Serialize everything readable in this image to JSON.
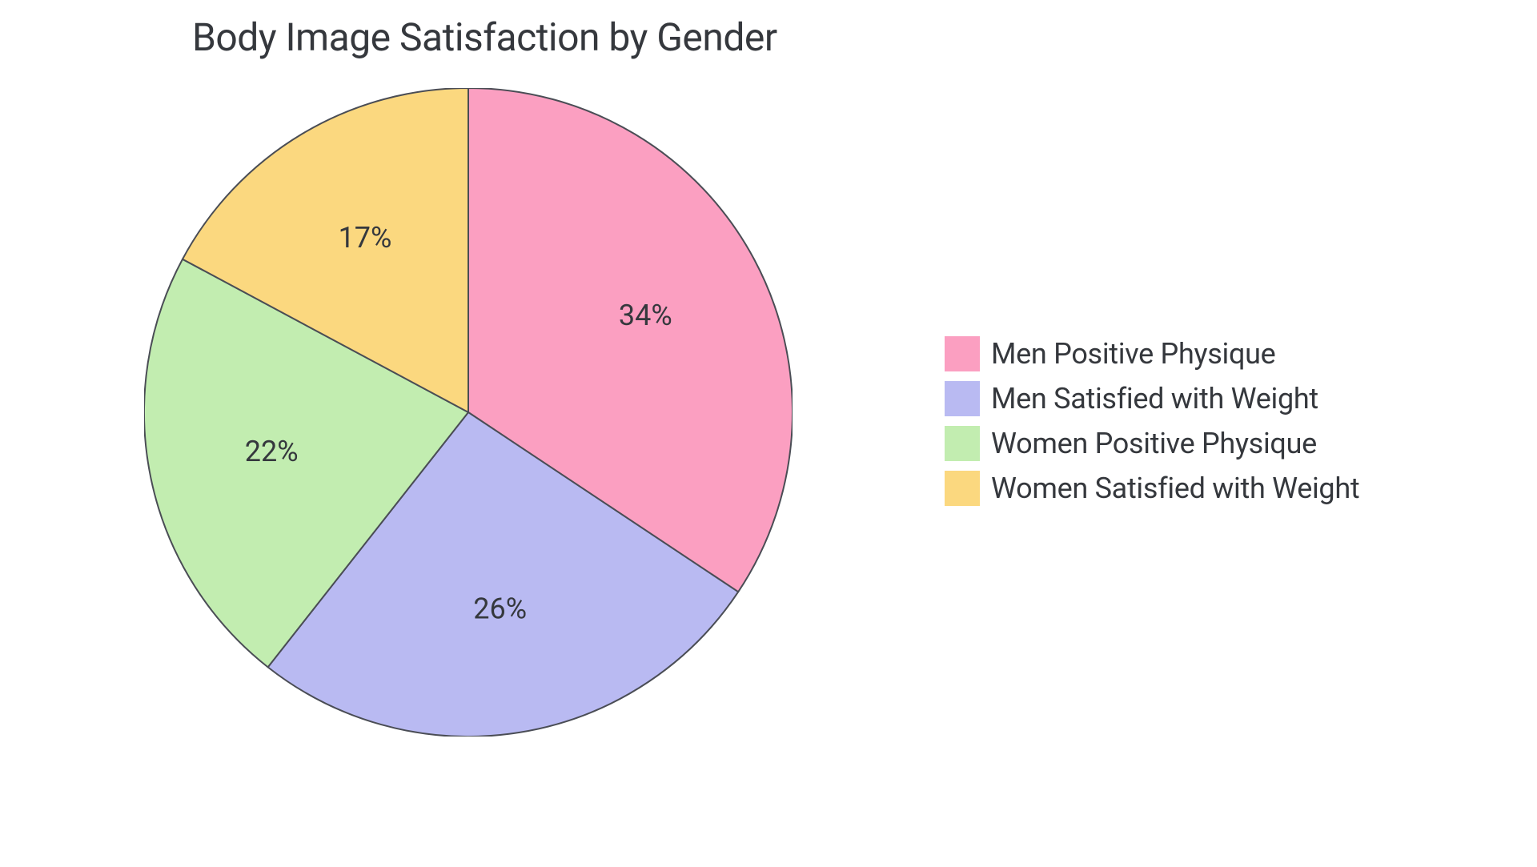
{
  "chart": {
    "type": "pie",
    "title": "Body Image Satisfaction by Gender",
    "title_fontsize": 48,
    "title_color": "#35383d",
    "background_color": "#ffffff",
    "stroke_color": "#4a4d55",
    "stroke_width": 2,
    "label_fontsize": 36,
    "label_color": "#35383d",
    "legend_fontsize": 36,
    "legend_color": "#35383d",
    "legend_swatch_size": 44,
    "radius": 405,
    "start_angle_deg": -90,
    "slices": [
      {
        "label": "Men Positive Physique",
        "value": 34,
        "display": "34%",
        "color": "#fb9fc1"
      },
      {
        "label": "Men Satisfied with Weight",
        "value": 26,
        "display": "26%",
        "color": "#b9baf2"
      },
      {
        "label": "Women Positive Physique",
        "value": 22,
        "display": "22%",
        "color": "#c2edb0"
      },
      {
        "label": "Women Satisfied with Weight",
        "value": 17,
        "display": "17%",
        "color": "#fbd87f"
      }
    ]
  }
}
